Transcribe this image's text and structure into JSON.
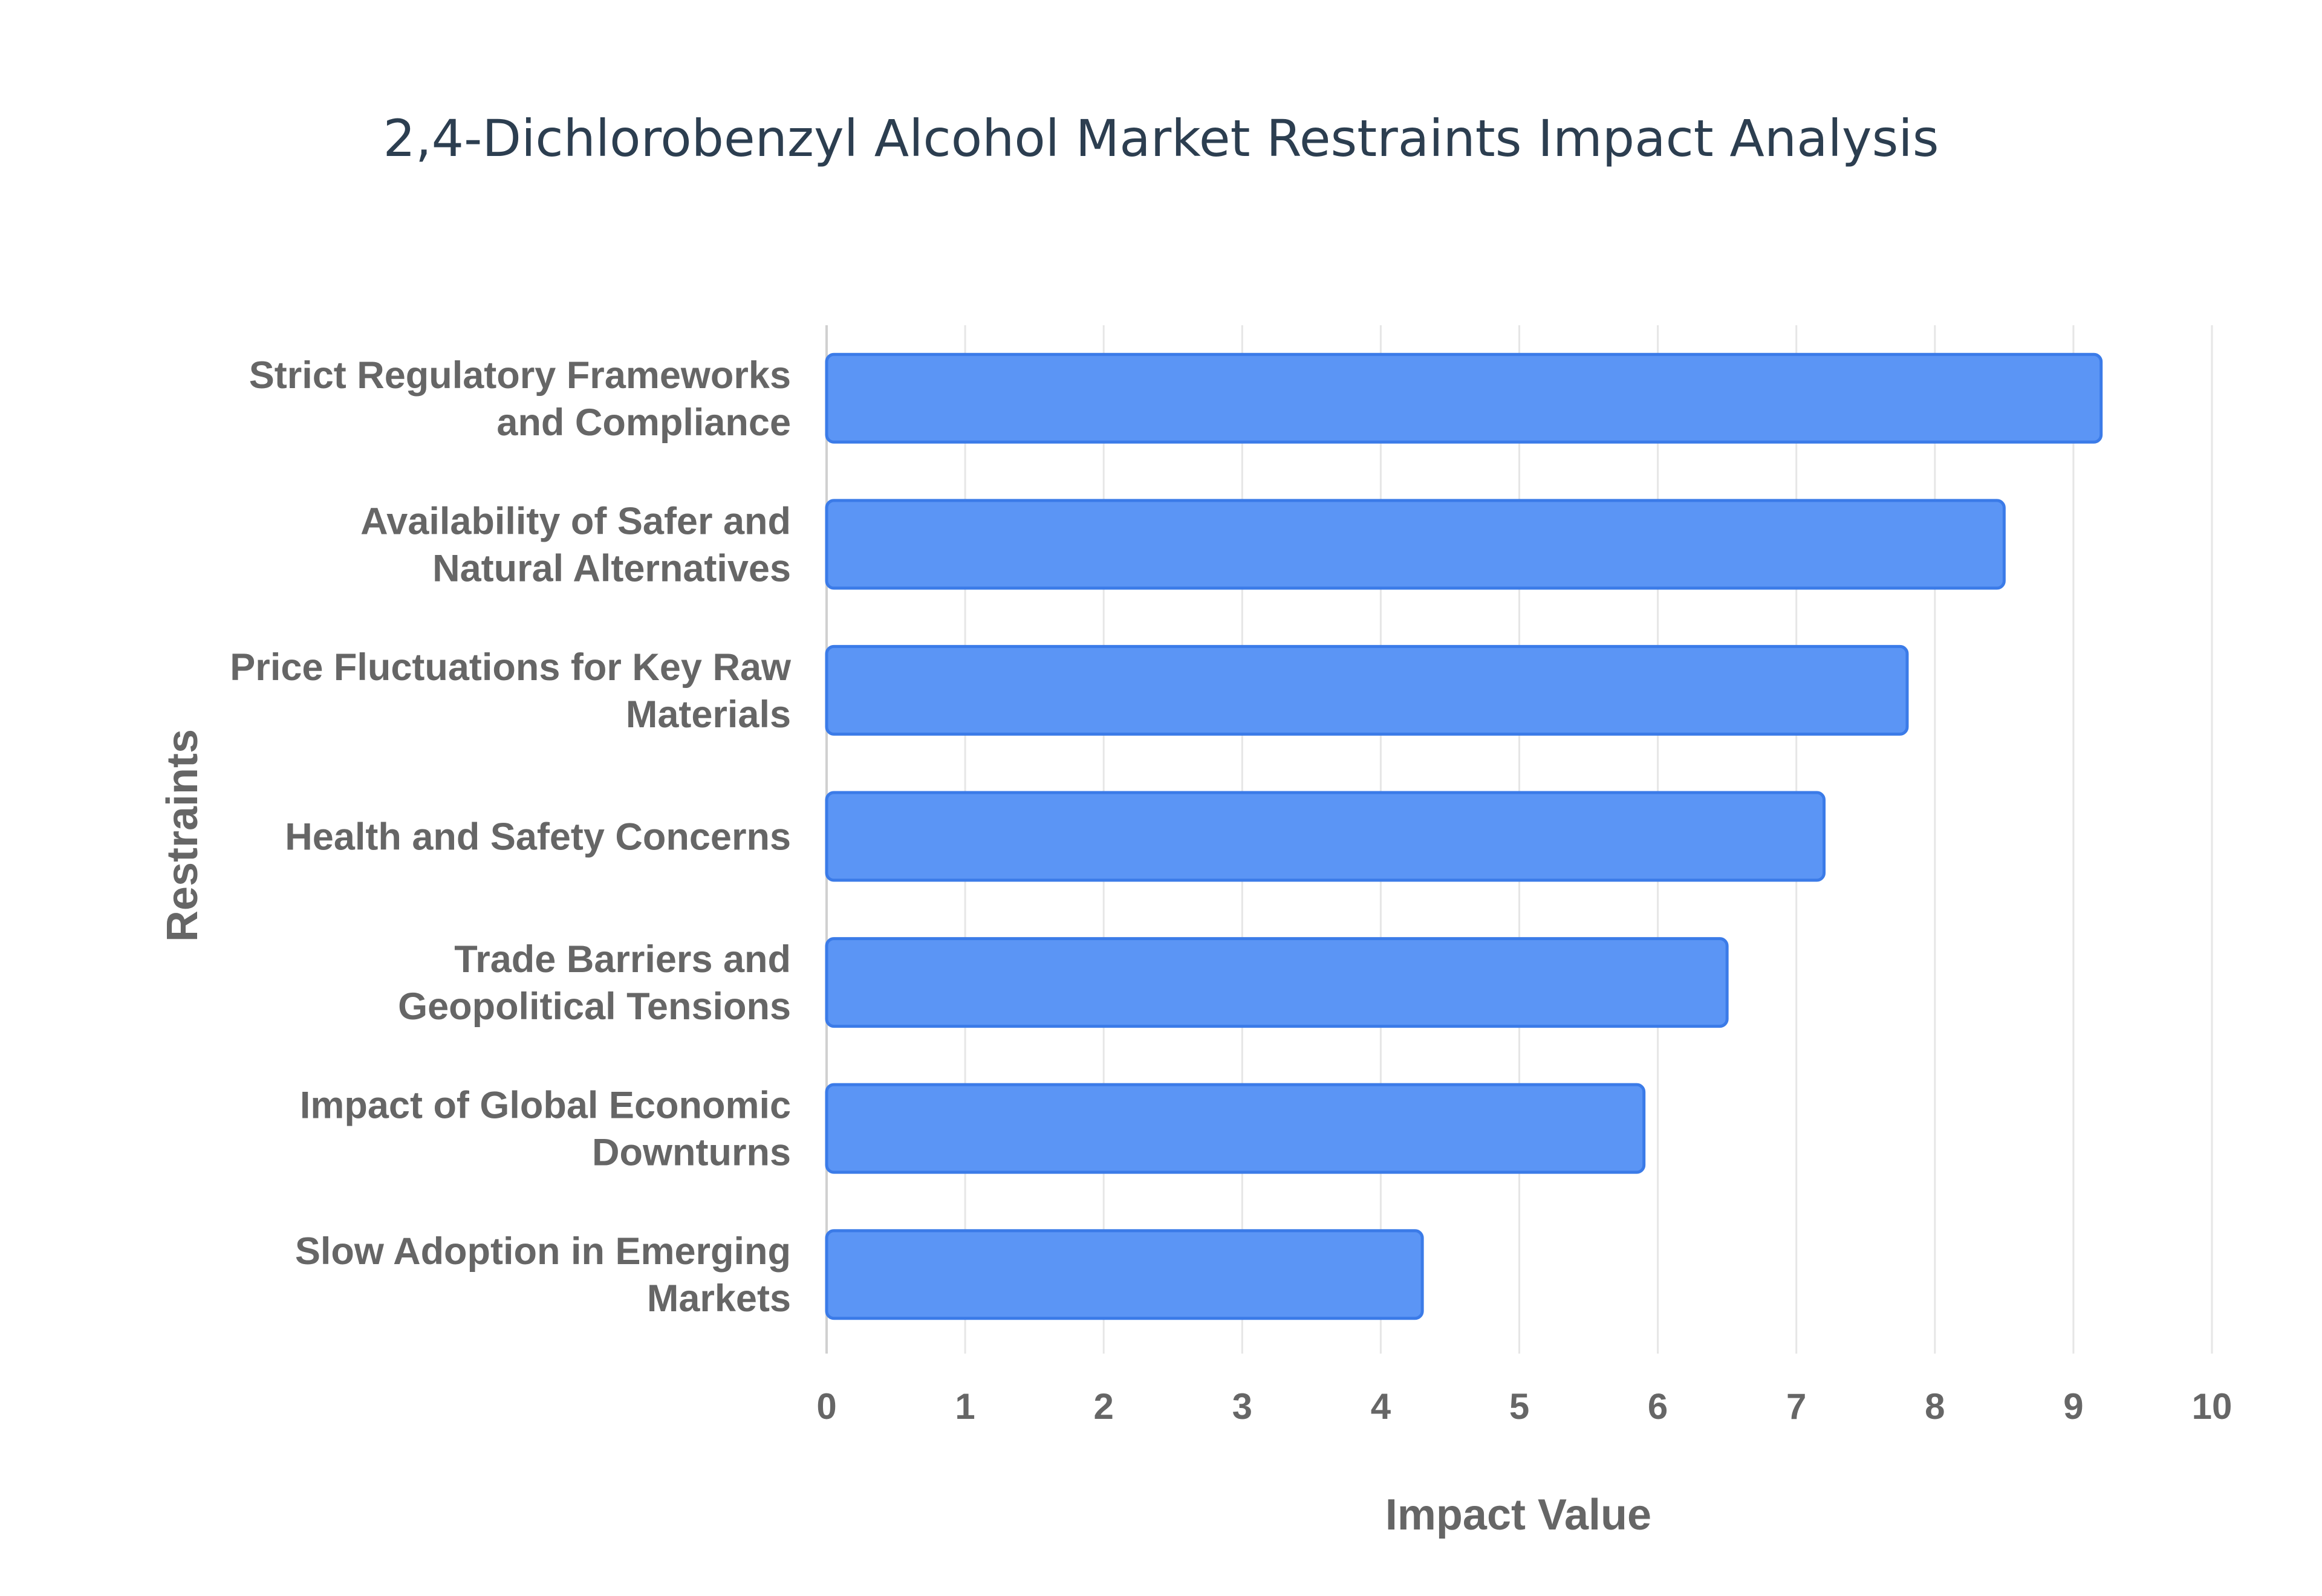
{
  "chart_data": {
    "type": "bar",
    "orientation": "horizontal",
    "title": "2,4-Dichlorobenzyl Alcohol Market Restraints Impact Analysis",
    "xlabel": "Impact Value",
    "ylabel": "Restraints",
    "xlim": [
      0,
      10
    ],
    "x_ticks": [
      "0",
      "1",
      "2",
      "3",
      "4",
      "5",
      "6",
      "7",
      "8",
      "9",
      "10"
    ],
    "grid": true,
    "categories": [
      [
        "Strict Regulatory Frameworks",
        "and Compliance"
      ],
      [
        "Availability of Safer and",
        "Natural Alternatives"
      ],
      [
        "Price Fluctuations for Key Raw",
        "Materials"
      ],
      [
        "Health and Safety Concerns"
      ],
      [
        "Trade Barriers and",
        "Geopolitical Tensions"
      ],
      [
        "Impact of Global Economic",
        "Downturns"
      ],
      [
        "Slow Adoption in Emerging",
        "Markets"
      ]
    ],
    "values": [
      9.2,
      8.5,
      7.8,
      7.2,
      6.5,
      5.9,
      4.3
    ],
    "colors": {
      "bar_fill": "#5b95f5",
      "bar_stroke": "#3b7be8",
      "grid": "#e6e6e6",
      "title": "#2c3e50",
      "labels": "#666666"
    }
  }
}
